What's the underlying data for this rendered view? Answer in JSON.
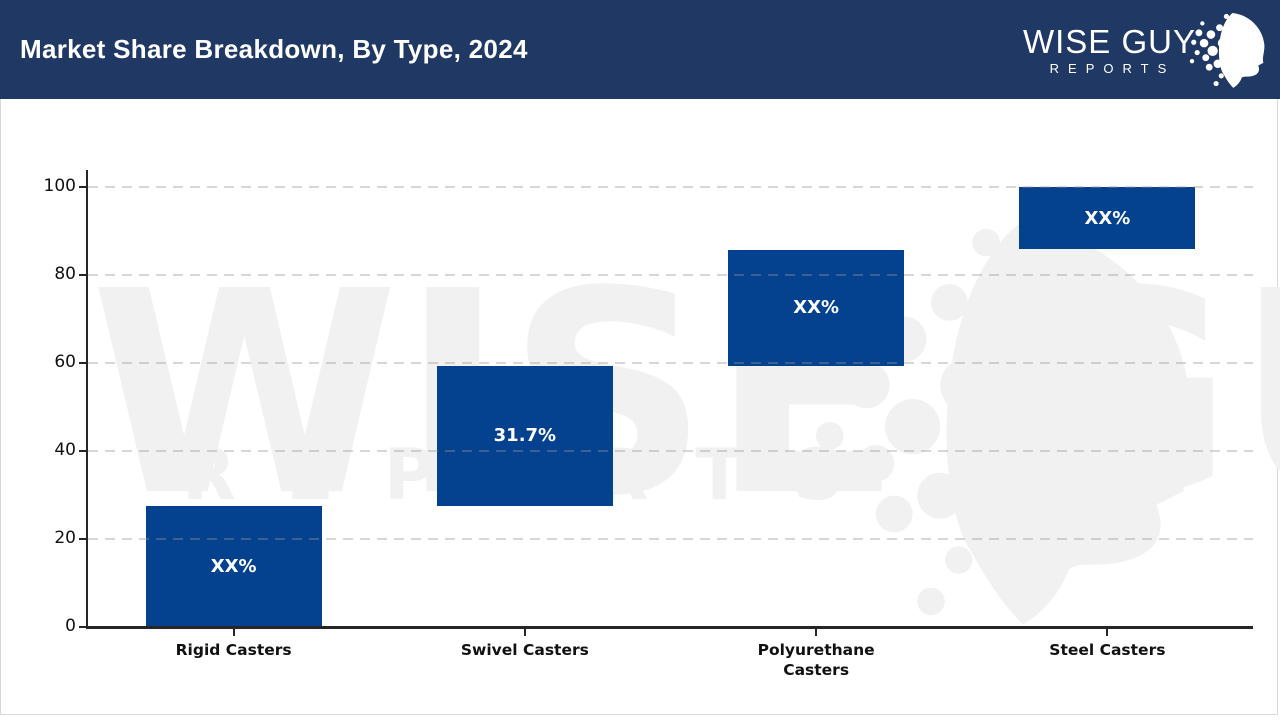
{
  "header": {
    "title": "Market Share Breakdown, By Type, 2024",
    "logo": {
      "name_line": "WISE GUY",
      "sub_line": "REPORTS"
    }
  },
  "watermark": {
    "line1": "WISE GUY",
    "line2": "REPORTS"
  },
  "colors": {
    "header_bg": "#203864",
    "bar_blue": "#04418e",
    "axis": "#262626",
    "watermark_gray": "#f1f1f1",
    "label_white": "#ffffff",
    "text_dark": "#111111"
  },
  "chart_data": {
    "type": "bar",
    "variant": "floating-waterfall",
    "title": "Market Share Breakdown, By Type, 2024",
    "xlabel": "",
    "ylabel": "",
    "ylim": [
      0,
      100
    ],
    "yticks": [
      0,
      20,
      40,
      60,
      80,
      100
    ],
    "grid": {
      "axis": "y",
      "style": "dashed",
      "drawn_over_bars": true
    },
    "legend": null,
    "categories": [
      "Rigid Casters",
      "Swivel Casters",
      "Polyurethane Casters",
      "Steel Casters"
    ],
    "segments": [
      {
        "category": "Rigid Casters",
        "start": 0,
        "end": 27.6,
        "size": 27.6,
        "label": "XX%"
      },
      {
        "category": "Swivel Casters",
        "start": 27.6,
        "end": 59.3,
        "size": 31.7,
        "label": "31.7%"
      },
      {
        "category": "Polyurethane Casters",
        "start": 59.3,
        "end": 85.8,
        "size": 26.5,
        "label": "XX%"
      },
      {
        "category": "Steel Casters",
        "start": 85.8,
        "end": 100,
        "size": 14.2,
        "label": "XX%"
      }
    ]
  }
}
